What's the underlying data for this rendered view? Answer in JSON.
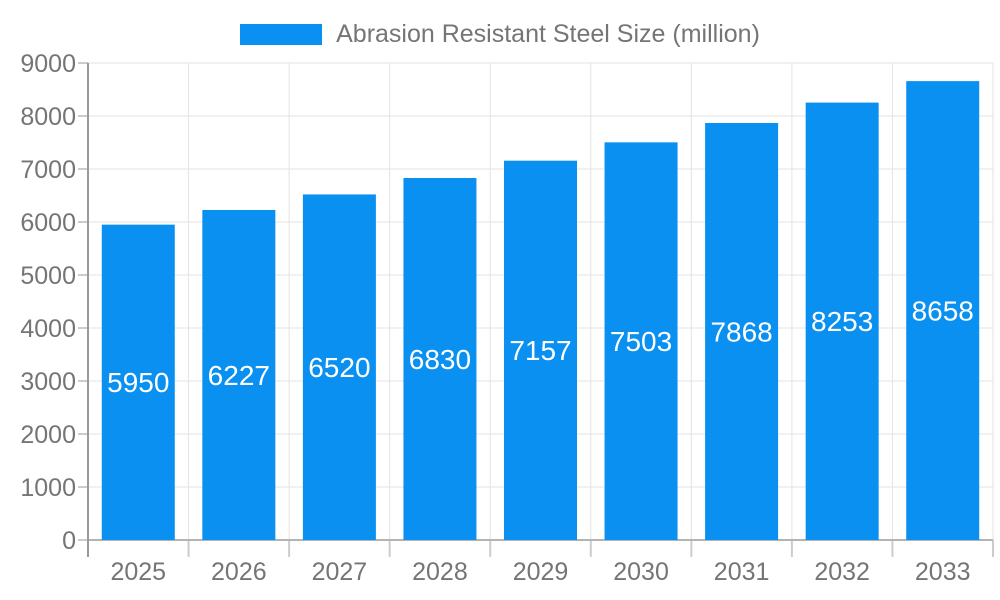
{
  "chart_data": {
    "type": "bar",
    "title": "Abrasion Resistant Steel Size (million)",
    "categories": [
      "2025",
      "2026",
      "2027",
      "2028",
      "2029",
      "2030",
      "2031",
      "2032",
      "2033"
    ],
    "values": [
      5950,
      6227,
      6520,
      6830,
      7157,
      7503,
      7868,
      8253,
      8658
    ],
    "xlabel": "",
    "ylabel": "",
    "ylim": [
      0,
      9000
    ],
    "ytick_step": 1000,
    "yticks": [
      "0",
      "1000",
      "2000",
      "3000",
      "4000",
      "5000",
      "6000",
      "7000",
      "8000",
      "9000"
    ],
    "grid": true,
    "legend_position": "top-center",
    "legend_entries": [
      "Abrasion Resistant Steel Size (million)"
    ],
    "colors": {
      "bar": "#0a90f0",
      "axis_text": "#757575",
      "value_label": "#ffffff",
      "gridline": "#e3e3e3",
      "tick": "#cccccc",
      "x_axis_line": "#b3b3b3",
      "y_axis_line": "#999999",
      "background": "#ffffff"
    }
  }
}
